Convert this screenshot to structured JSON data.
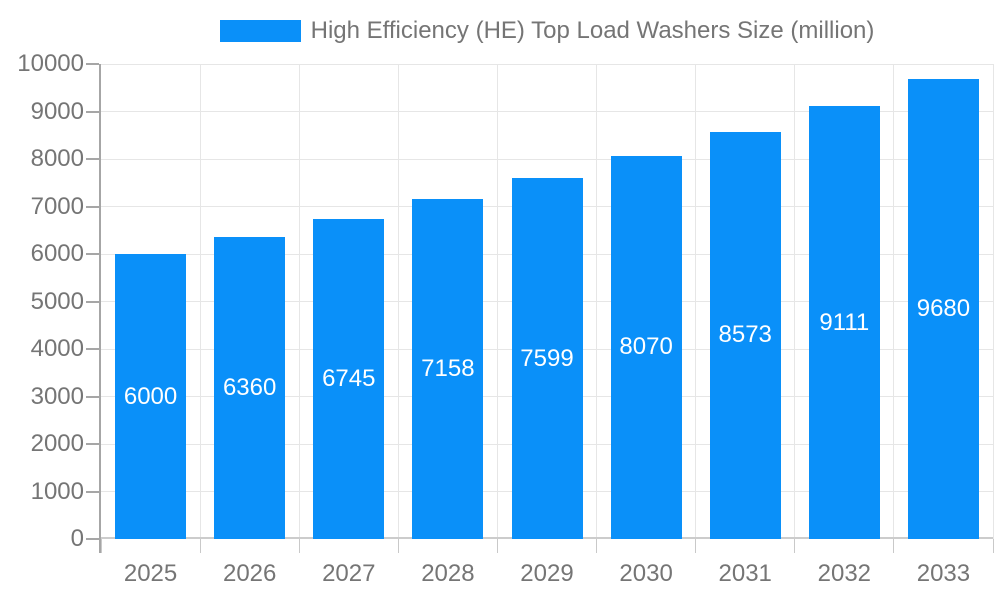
{
  "chart_data": {
    "type": "bar",
    "title": "High Efficiency (HE) Top Load Washers Size (million)",
    "legend": {
      "position": "top",
      "entries": [
        "High Efficiency (HE) Top Load Washers Size (million)"
      ]
    },
    "categories": [
      "2025",
      "2026",
      "2027",
      "2028",
      "2029",
      "2030",
      "2031",
      "2032",
      "2033"
    ],
    "values": [
      6000,
      6360,
      6745,
      7158,
      7599,
      8070,
      8573,
      9111,
      9680
    ],
    "value_labels": [
      "6000",
      "6360",
      "6745",
      "7158",
      "7599",
      "8070",
      "8573",
      "9111",
      "9680"
    ],
    "xlabel": "",
    "ylabel": "",
    "ylim": [
      0,
      10000
    ],
    "ytick_interval": 1000,
    "ytick_labels": [
      "0",
      "1000",
      "2000",
      "3000",
      "4000",
      "5000",
      "6000",
      "7000",
      "8000",
      "9000",
      "10000"
    ],
    "grid": true,
    "colors": {
      "bar": "#0a90f9",
      "value_label": "#ffffff",
      "axis_label": "#757575",
      "gridline": "#e6e6e6",
      "axis_line": "#a6a6a6"
    }
  }
}
